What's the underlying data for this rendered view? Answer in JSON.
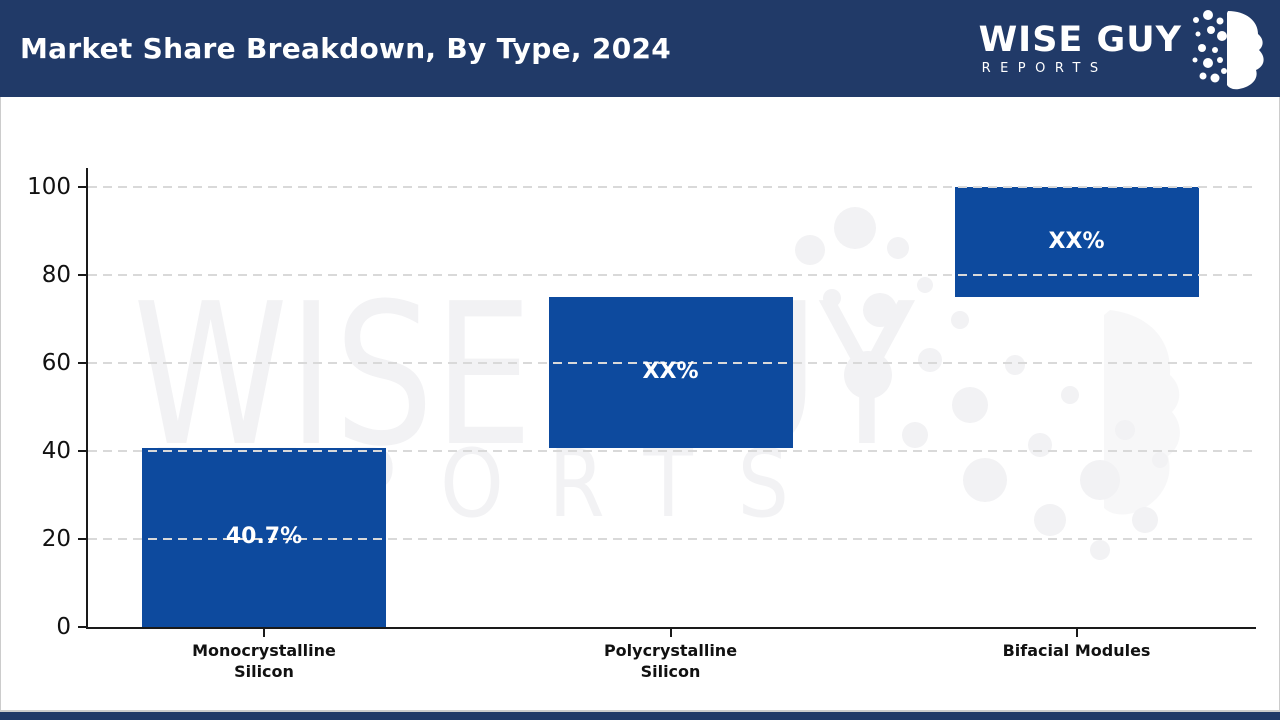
{
  "header": {
    "title": "Market Share Breakdown, By Type, 2024",
    "logo": {
      "wise_guy": "WISE GUY",
      "reports": "REPORTS"
    }
  },
  "watermark": {
    "big_text": "WISE GUY",
    "small_text": "REPORTS"
  },
  "colors": {
    "header_bg": "#213A68",
    "footer_bg": "#213A68",
    "bar_blue": "#0D4A9E",
    "gridline": "#D9D9D9",
    "axis": "#1A1A1A",
    "text": "#111111",
    "watermark": "#F2F2F4"
  },
  "chart_data": {
    "type": "bar",
    "variant": "stacked-waterfall",
    "title": "Market Share Breakdown, By Type, 2024",
    "categories": [
      [
        "Monocrystalline",
        "Silicon"
      ],
      [
        "Polycrystalline",
        "Silicon"
      ],
      [
        "Bifacial Modules"
      ]
    ],
    "segments": [
      {
        "category": "Monocrystalline Silicon",
        "start": 0,
        "end": 40.7,
        "value": 40.7,
        "label": "40.7%"
      },
      {
        "category": "Polycrystalline Silicon",
        "start": 40.7,
        "end": 75,
        "value": 34.3,
        "label": "XX%"
      },
      {
        "category": "Bifacial Modules",
        "start": 75,
        "end": 100,
        "value": 25,
        "label": "XX%"
      }
    ],
    "xlabel": "",
    "ylabel": "",
    "ylim": [
      0,
      100
    ],
    "yticks": [
      0,
      20,
      40,
      60,
      80,
      100
    ],
    "grid": "horizontal-dashed",
    "legend": "none",
    "bar_color": "#0D4A9E",
    "grid_color": "#D9D9D9"
  }
}
